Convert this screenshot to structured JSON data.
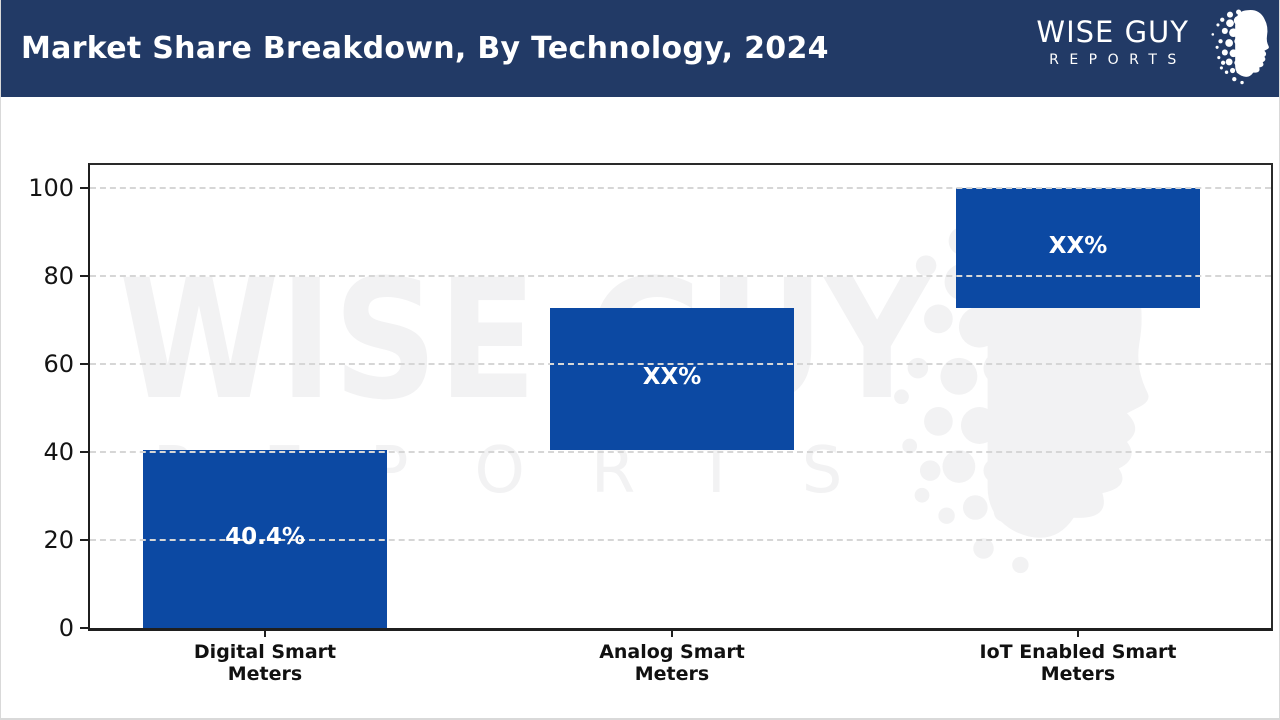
{
  "header": {
    "title": "Market Share Breakdown, By Technology, 2024",
    "logo": {
      "line1": "WISE GUY",
      "line2": "REPORTS",
      "icon": "dotted-face-logo"
    }
  },
  "watermark": {
    "line1": "WISE GUY",
    "line2": "REPORTS"
  },
  "chart_data": {
    "type": "bar",
    "subtype": "floating-waterfall",
    "title": "Market Share Breakdown, By Technology, 2024",
    "categories": [
      {
        "line1": "Digital Smart",
        "line2": "Meters"
      },
      {
        "line1": "Analog Smart",
        "line2": "Meters"
      },
      {
        "line1": "IoT Enabled Smart",
        "line2": "Meters"
      }
    ],
    "series": [
      {
        "name": "Market share (%)",
        "segments": [
          {
            "category": "Digital Smart Meters",
            "start": 0,
            "end": 40.4,
            "label": "40.4%"
          },
          {
            "category": "Analog Smart Meters",
            "start": 40.4,
            "end": 72.7,
            "label": "XX%"
          },
          {
            "category": "IoT Enabled Smart Meters",
            "start": 72.7,
            "end": 100,
            "label": "XX%"
          }
        ]
      }
    ],
    "ylim": [
      0,
      100
    ],
    "yticks": [
      0,
      20,
      40,
      60,
      80,
      100
    ],
    "xlabel": "",
    "ylabel": "",
    "grid": "horizontal-dashed-above-bars",
    "legend": "none",
    "colors": {
      "bar": "#0c49a3",
      "bar_label": "#ffffff",
      "grid": "#d6d6d6",
      "axis": "#1f1f1f",
      "header_bg": "#223a66",
      "watermark": "#f2f2f3"
    }
  }
}
